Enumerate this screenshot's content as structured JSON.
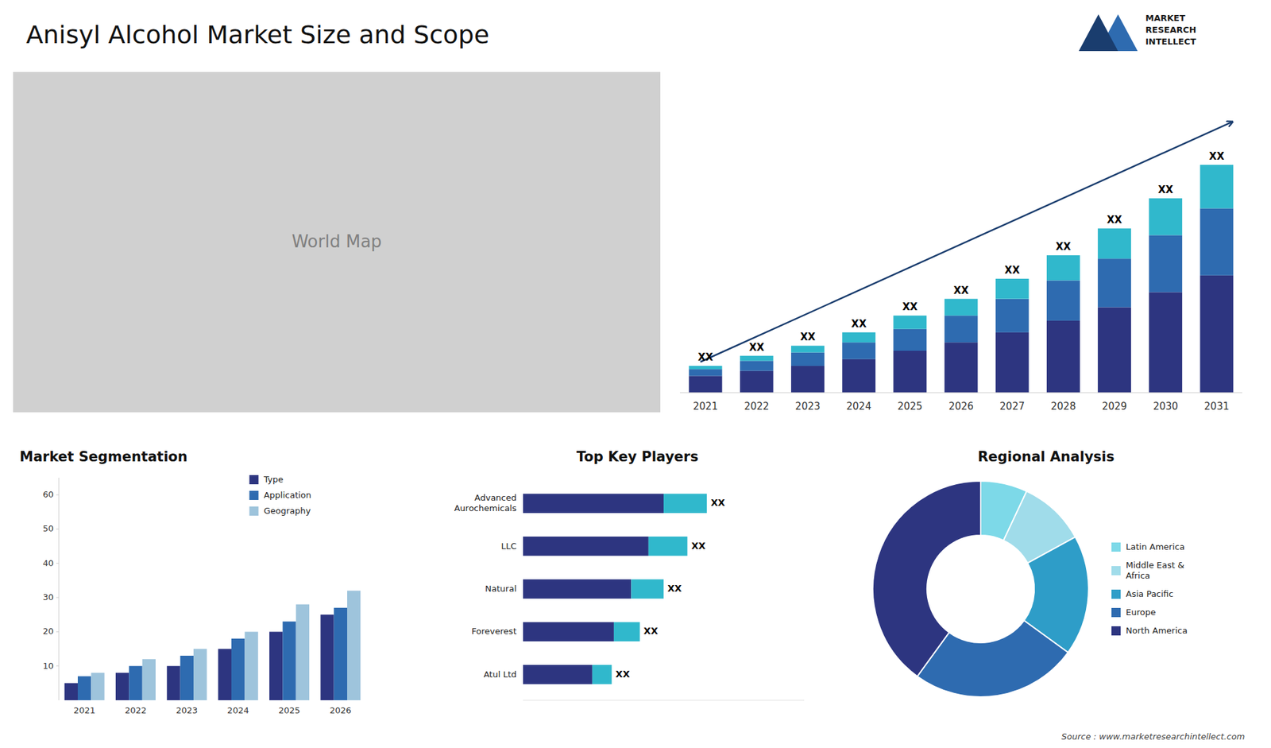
{
  "chart_data": [
    {
      "type": "map",
      "title": "Anisyl Alcohol Market Size and Scope",
      "annotations": [
        "World Map",
        "MARKET\nRESEARCH\nINTELLECT",
        "Source : www.marketresearchintellect.com"
      ]
    },
    {
      "type": "bar",
      "stacked": true,
      "categories": [
        "2021",
        "2022",
        "2023",
        "2024",
        "2025",
        "2026",
        "2027",
        "2028",
        "2029",
        "2030",
        "2031"
      ],
      "series": [
        {
          "color": "#2d3580",
          "values": [
            1.0,
            1.3,
            1.6,
            2.0,
            2.5,
            3.0,
            3.6,
            4.3,
            5.1,
            6.0,
            7.0
          ]
        },
        {
          "color": "#2e6bb0",
          "values": [
            0.4,
            0.6,
            0.8,
            1.0,
            1.3,
            1.6,
            2.0,
            2.4,
            2.9,
            3.4,
            4.0
          ]
        },
        {
          "color": "#30b8cc",
          "values": [
            0.2,
            0.3,
            0.4,
            0.6,
            0.8,
            1.0,
            1.2,
            1.5,
            1.8,
            2.2,
            2.6
          ]
        }
      ],
      "annotations": [
        "XX",
        "XX",
        "XX",
        "XX",
        "XX",
        "XX",
        "XX",
        "XX",
        "XX",
        "XX",
        "XX"
      ],
      "ylim": [
        0,
        18.36
      ],
      "tick_labels": "x"
    },
    {
      "type": "bar",
      "title": "Market Segmentation",
      "categories": [
        "2021",
        "2022",
        "2023",
        "2024",
        "2025",
        "2026"
      ],
      "series": [
        {
          "name": "Type",
          "color": "#2d3580",
          "values": [
            5,
            8,
            10,
            15,
            20,
            25
          ]
        },
        {
          "name": "Application",
          "color": "#2e6bb0",
          "values": [
            7,
            10,
            13,
            18,
            23,
            27
          ]
        },
        {
          "name": "Geography",
          "color": "#9ec4dc",
          "values": [
            8,
            12,
            15,
            20,
            28,
            32
          ]
        }
      ],
      "ylim": [
        0,
        65
      ],
      "yticks": [
        10,
        20,
        30,
        40,
        50,
        60
      ],
      "legend": "upper right"
    },
    {
      "type": "bar",
      "orientation": "horizontal",
      "stacked": true,
      "title": "Top Key Players",
      "categories": [
        "Advanced\nAurochemicals",
        "LLC",
        "Natural",
        "Foreverest",
        "Atul Ltd"
      ],
      "series": [
        {
          "color": "#2d3580",
          "values": [
            6.5,
            5.8,
            5.0,
            4.2,
            3.2
          ]
        },
        {
          "color": "#30b8cc",
          "values": [
            2.0,
            1.8,
            1.5,
            1.2,
            0.9
          ]
        }
      ],
      "annotations": [
        "XX",
        "XX",
        "XX",
        "XX",
        "XX"
      ],
      "xlim": [
        0,
        13
      ],
      "tick_labels": "y"
    },
    {
      "type": "pie",
      "title": "Regional Analysis",
      "categories": [
        "Latin America",
        "Middle East &\nAfrica",
        "Asia Pacific",
        "Europe",
        "North America"
      ],
      "values": [
        7,
        10,
        18,
        25,
        40
      ],
      "colors": [
        "#7dd9e8",
        "#a0dcea",
        "#2e9dc8",
        "#2e6bb0",
        "#2d3580"
      ],
      "legend": "right"
    }
  ]
}
